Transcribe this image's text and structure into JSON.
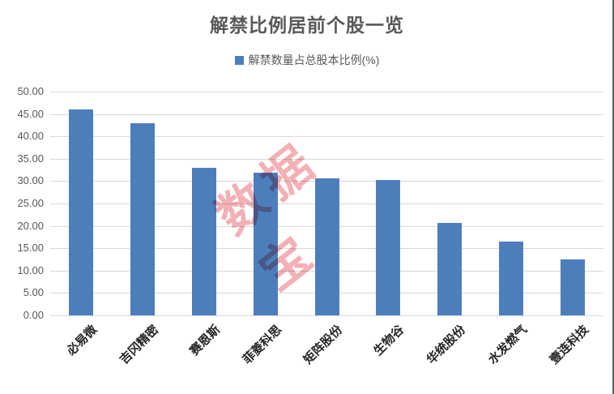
{
  "page": {
    "background": "#ffffff",
    "edge_line_color": "#3f5f48"
  },
  "chart_data": {
    "type": "bar",
    "title": "解禁比例居前个股一览",
    "legend_label": "解禁数量占总股本比例(%)",
    "legend_position": "top",
    "categories": [
      "必易微",
      "吉冈精密",
      "赛恩斯",
      "菲菱科思",
      "矩阵股份",
      "生物谷",
      "华统股份",
      "水发燃气",
      "壹连科技"
    ],
    "values": [
      46.0,
      42.9,
      33.0,
      31.9,
      30.6,
      30.2,
      20.6,
      16.5,
      12.5
    ],
    "ylim": [
      0,
      50
    ],
    "ytick_step": 5,
    "ytick_labels": [
      "50.00",
      "45.00",
      "40.00",
      "35.00",
      "30.00",
      "25.00",
      "20.00",
      "15.00",
      "10.00",
      "5.00",
      "0.00"
    ],
    "grid": true,
    "xlabel": "",
    "ylabel": "",
    "watermark": "数据宝",
    "colors": {
      "bar": "#4d7ebc",
      "grid": "#d9d9d9",
      "title_text": "#595959",
      "axis_text": "#595959",
      "category_text": "#262626",
      "watermark_text": "#ee8f96"
    }
  }
}
